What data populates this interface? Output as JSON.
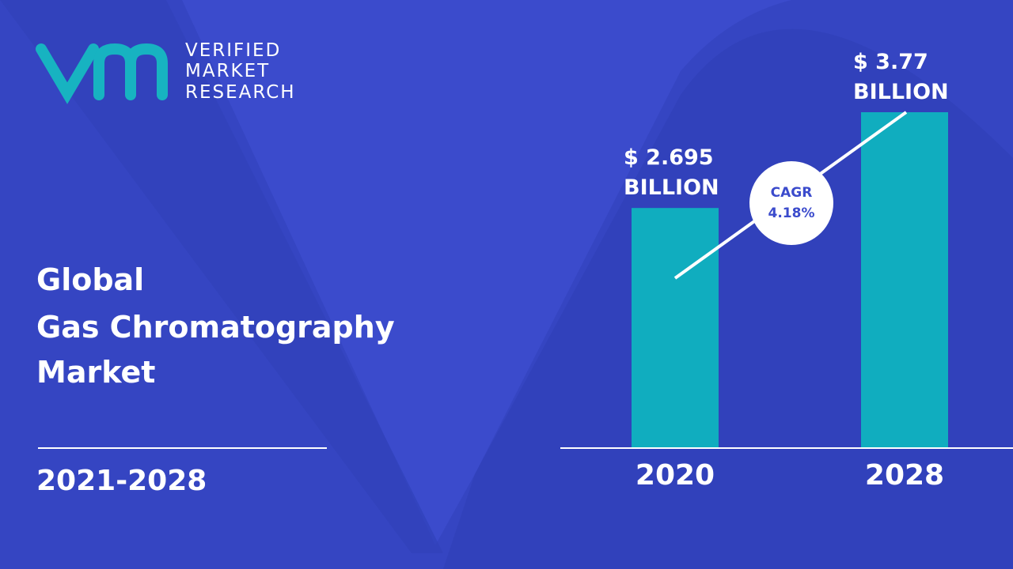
{
  "brand": [
    "VERIFIED",
    "MARKET",
    "RESEARCH"
  ],
  "chart_data": {
    "type": "bar",
    "title": [
      "Global",
      "Gas Chromatography",
      "Market"
    ],
    "subtitle": "2021-2028",
    "categories": [
      "2020",
      "2028"
    ],
    "values": [
      2.695,
      3.77
    ],
    "value_labels": [
      "$ 2.695 BILLION",
      "$ 3.77 BILLION"
    ],
    "color": "#10adbf",
    "annotations": [
      "CAGR",
      "4.18%"
    ]
  }
}
